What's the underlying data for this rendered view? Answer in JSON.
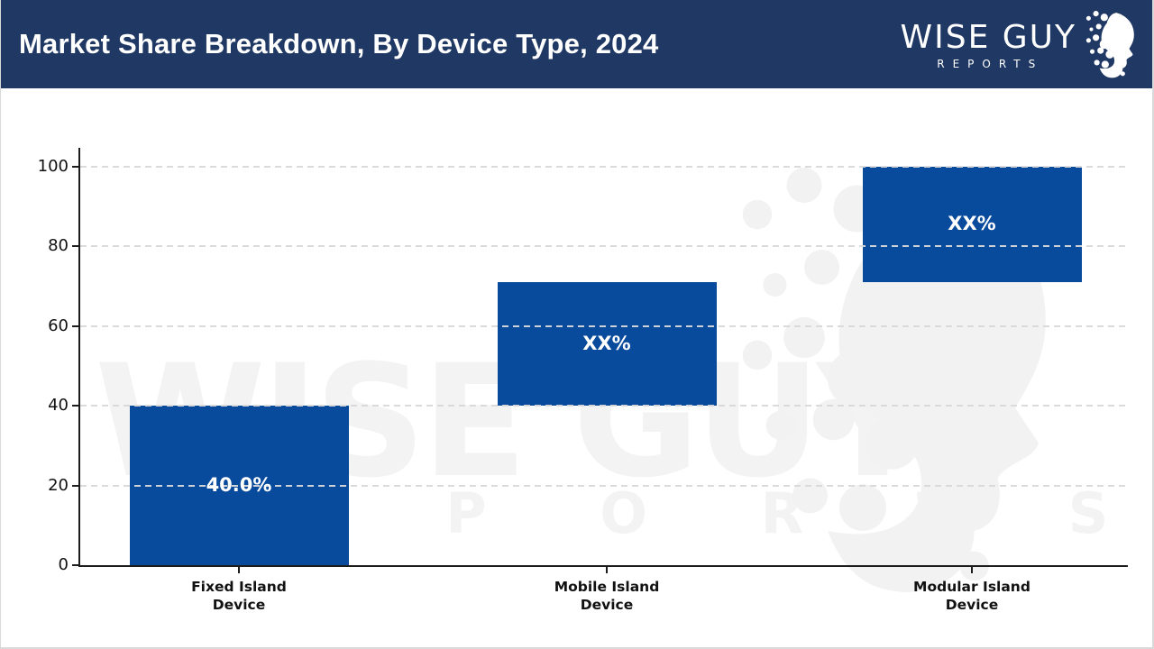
{
  "header": {
    "title": "Market Share Breakdown, By Device Type, 2024",
    "bg_color": "#203864",
    "logo": {
      "line1": "WISE GUY",
      "line2": "REPORTS"
    }
  },
  "watermark": {
    "line1": "WISE GUY",
    "line2": "REPORTS",
    "color": "#f3f3f3"
  },
  "chart_data": {
    "type": "bar",
    "variant": "waterfall-breakdown",
    "title": "Market Share Breakdown, By Device Type, 2024",
    "categories": [
      {
        "lines": [
          "Fixed Island",
          "Device"
        ]
      },
      {
        "lines": [
          "Mobile Island",
          "Device"
        ]
      },
      {
        "lines": [
          "Modular Island",
          "Device"
        ]
      }
    ],
    "segments": [
      {
        "name": "Fixed Island Device",
        "start": 0,
        "end": 40,
        "delta": 40,
        "label": "40.0%"
      },
      {
        "name": "Mobile Island Device",
        "start": 40,
        "end": 71,
        "delta": 31,
        "label": "XX%"
      },
      {
        "name": "Modular Island Device",
        "start": 71,
        "end": 100,
        "delta": 29,
        "label": "XX%"
      }
    ],
    "yticks": [
      0,
      20,
      40,
      60,
      80,
      100
    ],
    "ylim": [
      0,
      104.5
    ],
    "xlabel": "",
    "ylabel": "",
    "bar_color": "#084a9c",
    "grid": {
      "axis": "y",
      "style": "dashed",
      "color": "#d9d9d9"
    },
    "legend": "none"
  }
}
